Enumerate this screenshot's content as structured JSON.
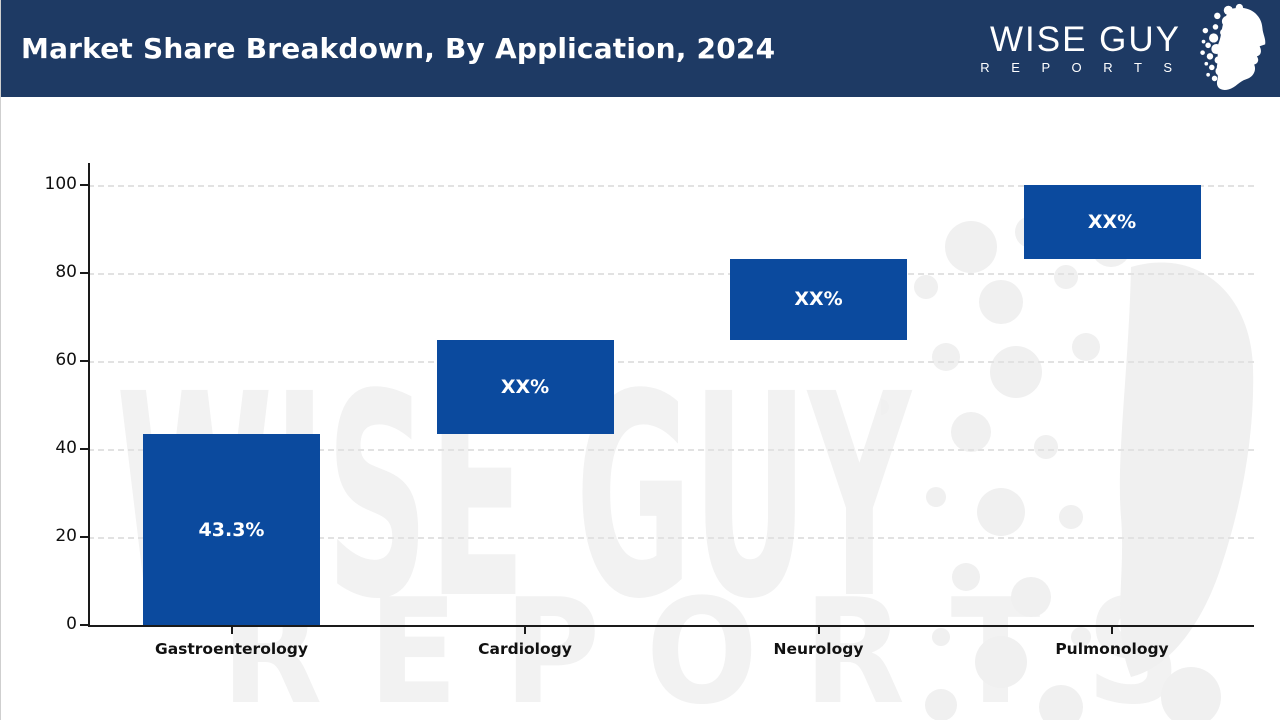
{
  "header": {
    "title": "Market Share Breakdown, By Application, 2024",
    "logo": {
      "line1": "WISE GUY",
      "line2": "R E P O R T S"
    }
  },
  "watermark": {
    "line1": "WISE GUY",
    "line2": "R E P O R T S"
  },
  "colors": {
    "header_bg": "#1e3a64",
    "bar": "#0b4a9e",
    "bar_label": "#ffffff",
    "axis": "#1a1a1a",
    "grid": "#e2e2e2",
    "watermark": "#f2f2f2"
  },
  "chart_data": {
    "type": "bar",
    "subtype": "waterfall",
    "title": "Market Share Breakdown, By Application, 2024",
    "categories": [
      "Gastroenterology",
      "Cardiology",
      "Neurology",
      "Pulmonology"
    ],
    "segments": [
      {
        "start": 0,
        "end": 43.3,
        "label": "43.3%"
      },
      {
        "start": 43.3,
        "end": 64.8,
        "label": "XX%"
      },
      {
        "start": 64.8,
        "end": 83.2,
        "label": "XX%"
      },
      {
        "start": 83.2,
        "end": 100,
        "label": "XX%"
      }
    ],
    "yticks": [
      0,
      20,
      40,
      60,
      80,
      100
    ],
    "ylim": [
      0,
      100
    ],
    "xlabel": "",
    "ylabel": "",
    "grid": "horizontal-dashed",
    "legend": "none"
  }
}
